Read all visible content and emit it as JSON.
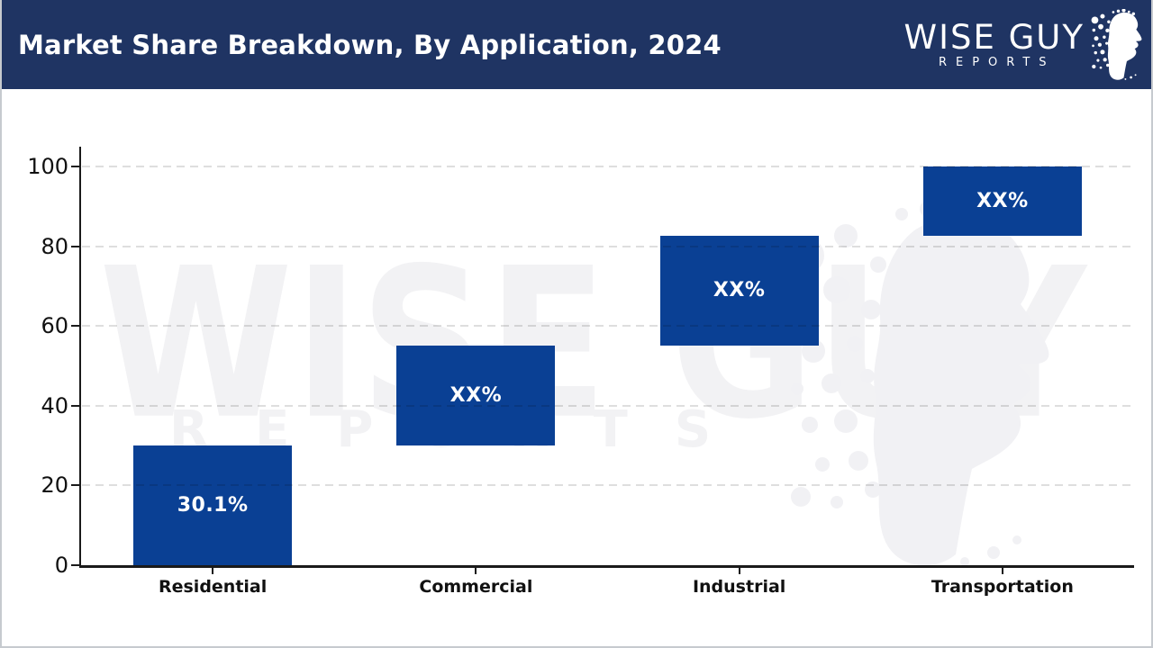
{
  "header": {
    "title": "Market Share Breakdown, By Application, 2024",
    "brand": {
      "line1": "WISE GUY",
      "line2": "REPORTS"
    }
  },
  "watermark": {
    "line1": "WISE GUY",
    "line2": "REPORTS"
  },
  "chart_data": {
    "type": "bar",
    "variant": "waterfall",
    "title": "Market Share Breakdown, By Application, 2024",
    "categories": [
      "Residential",
      "Commercial",
      "Industrial",
      "Transportation"
    ],
    "series": [
      {
        "name": "Market share by application",
        "segments": [
          {
            "category": "Residential",
            "start": 0,
            "end": 30.1,
            "label": "30.1%"
          },
          {
            "category": "Commercial",
            "start": 30.1,
            "end": 55.2,
            "label": "XX%"
          },
          {
            "category": "Industrial",
            "start": 55.2,
            "end": 82.6,
            "label": "XX%"
          },
          {
            "category": "Transportation",
            "start": 82.6,
            "end": 100,
            "label": "XX%"
          }
        ]
      }
    ],
    "xlabel": "",
    "ylabel": "",
    "ylim": [
      0,
      100
    ],
    "yticks": [
      0,
      20,
      40,
      60,
      80,
      100
    ],
    "grid": "horizontal-dashed",
    "legend": "none",
    "bar_color": "#0a4094",
    "bar_label_color": "#ffffff"
  },
  "colors": {
    "header_bg": "#1f3463",
    "bar": "#0a4094",
    "axis": "#1a1a1a",
    "grid": "rgba(0,0,0,0.13)",
    "watermark": "#f2f2f4"
  }
}
